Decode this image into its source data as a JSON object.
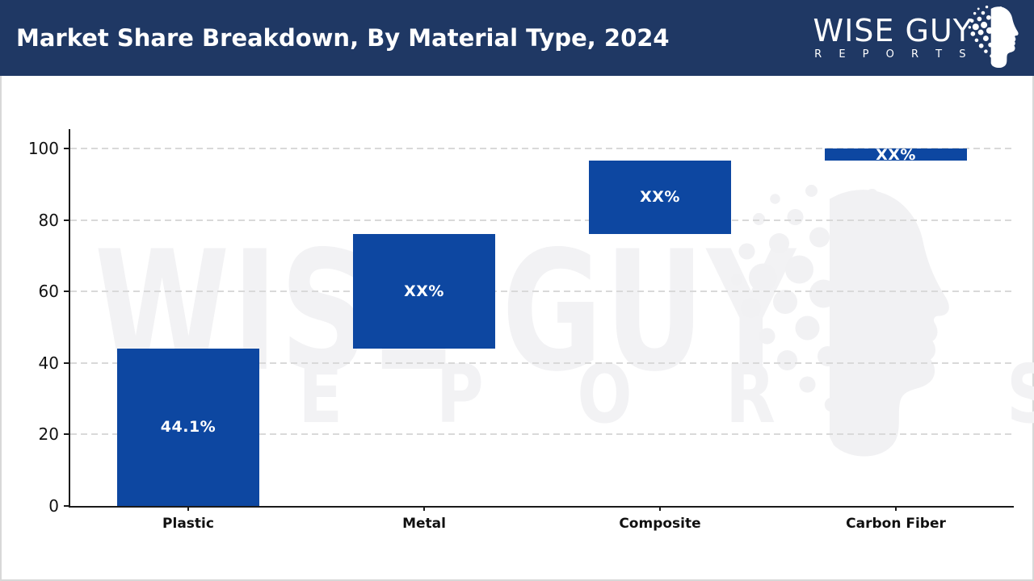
{
  "header": {
    "title": "Market Share Breakdown, By Material Type, 2024",
    "logo": {
      "wordmark": "WISE GUY",
      "subtitle": "R E P O R T S"
    }
  },
  "watermark": {
    "wordmark": "WISE GUY",
    "subtitle": "R E P O R T S"
  },
  "colors": {
    "header_bg": "#1f3864",
    "bar": "#0d47a1",
    "grid": "#d9d9d9",
    "axis": "#1a1a1a",
    "tick_label": "#111111",
    "value_label": "#ffffff",
    "watermark": "#f2f2f4"
  },
  "chart_data": {
    "type": "bar",
    "subtype": "waterfall",
    "title": "Market Share Breakdown, By Material Type, 2024",
    "categories": [
      "Plastic",
      "Metal",
      "Composite",
      "Carbon Fiber"
    ],
    "segments": [
      {
        "category": "Plastic",
        "start": 0,
        "end": 44.1,
        "label": "44.1%"
      },
      {
        "category": "Metal",
        "start": 44.1,
        "end": 76.2,
        "label": "XX%"
      },
      {
        "category": "Composite",
        "start": 76.2,
        "end": 96.7,
        "label": "XX%"
      },
      {
        "category": "Carbon Fiber",
        "start": 96.7,
        "end": 100,
        "label": "XX%"
      }
    ],
    "yticks": [
      0,
      20,
      40,
      60,
      80,
      100
    ],
    "ylim": [
      0,
      105.5
    ],
    "xlabel": "",
    "ylabel": "",
    "grid": "horizontal-dashed",
    "legend": false
  }
}
